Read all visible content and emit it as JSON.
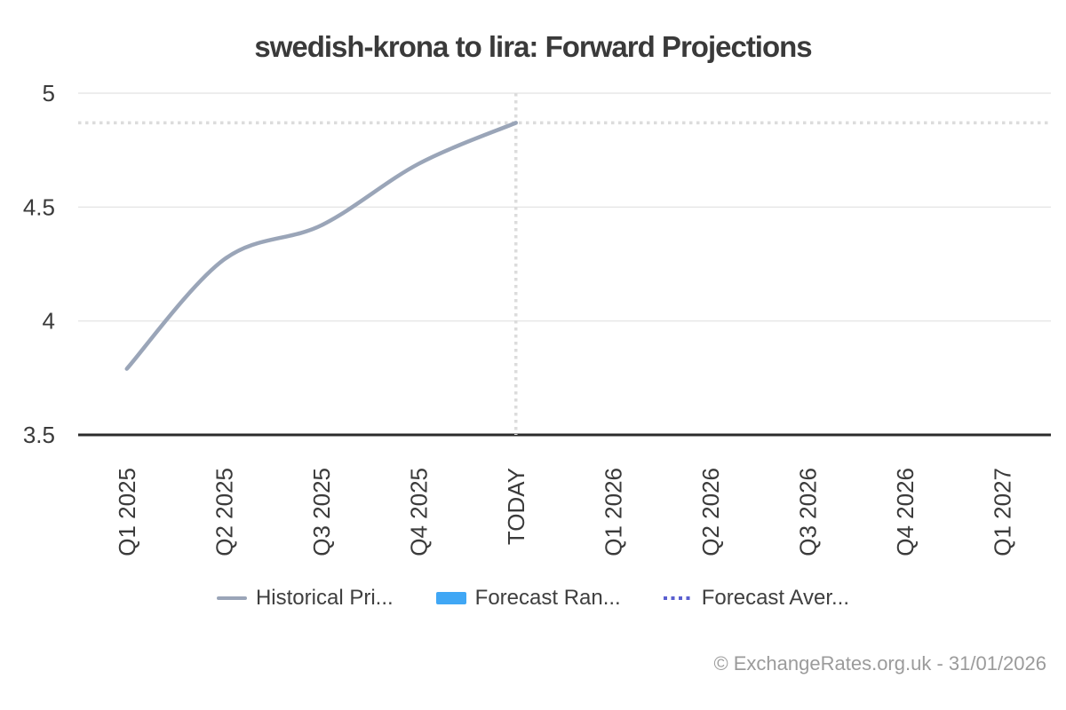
{
  "chart_data": {
    "type": "line",
    "title": "swedish-krona to lira: Forward Projections",
    "x_categories": [
      "Q1 2025",
      "Q2 2025",
      "Q3 2025",
      "Q4 2025",
      "TODAY",
      "Q1 2026",
      "Q2 2026",
      "Q3 2026",
      "Q4 2026",
      "Q1 2027"
    ],
    "y_ticks": [
      3.5,
      4,
      4.5,
      5
    ],
    "y_tick_labels": [
      "3.5",
      "4",
      "4.5",
      "5"
    ],
    "ylim": [
      3.5,
      5
    ],
    "grid": true,
    "legend_position": "bottom",
    "series": [
      {
        "label": "Historical Pri...",
        "style": "line",
        "color": "#9aa5b8",
        "x": [
          "Q1 2025",
          "Q2 2025",
          "Q3 2025",
          "Q4 2025",
          "TODAY"
        ],
        "values": [
          3.79,
          4.27,
          4.42,
          4.69,
          4.87
        ]
      },
      {
        "label": "Forecast Ran...",
        "style": "area",
        "color": "#40a7f5",
        "values": []
      },
      {
        "label": "Forecast Aver...",
        "style": "dotted-line",
        "color": "#5a5fd0",
        "values": []
      }
    ],
    "annotations": {
      "today_vline_category": "TODAY",
      "avg_hline_value": 4.87,
      "dotted_line_color": "#dcdcdc"
    }
  },
  "footer": {
    "copyright": "© ExchangeRates.org.uk - 31/01/2026"
  }
}
